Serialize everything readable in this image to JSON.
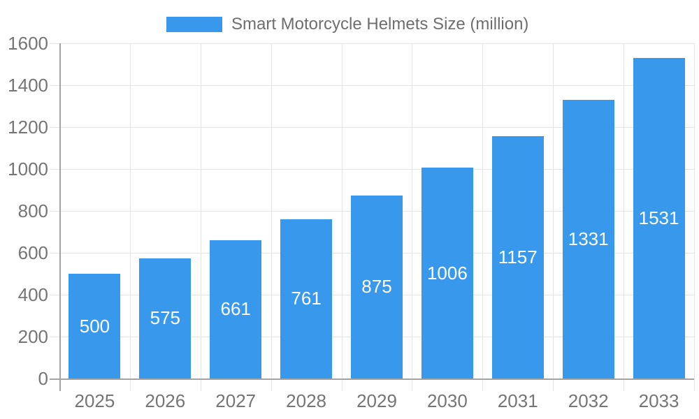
{
  "legend": {
    "label": "Smart Motorcycle Helmets Size (million)"
  },
  "chart_data": {
    "type": "bar",
    "title": "Smart Motorcycle Helmets Size (million)",
    "categories": [
      "2025",
      "2026",
      "2027",
      "2028",
      "2029",
      "2030",
      "2031",
      "2032",
      "2033"
    ],
    "values": [
      500,
      575,
      661,
      761,
      875,
      1006,
      1157,
      1331,
      1531
    ],
    "series": [
      {
        "name": "Smart Motorcycle Helmets Size (million)",
        "values": [
          500,
          575,
          661,
          761,
          875,
          1006,
          1157,
          1331,
          1531
        ]
      }
    ],
    "xlabel": "",
    "ylabel": "",
    "ylim": [
      0,
      1600
    ],
    "ytick_interval": 200,
    "ytick_labels": [
      "0",
      "200",
      "400",
      "600",
      "800",
      "1000",
      "1200",
      "1400",
      "1600"
    ],
    "grid": true,
    "legend_position": "top",
    "value_labels": "inside-center",
    "colors": {
      "bar": "#3899ec",
      "grid": "#e4e4e4",
      "axis": "#a3a3a3",
      "tick_text": "#757575",
      "legend_text": "#6e6e6e",
      "value_text": "#ffffff"
    }
  }
}
